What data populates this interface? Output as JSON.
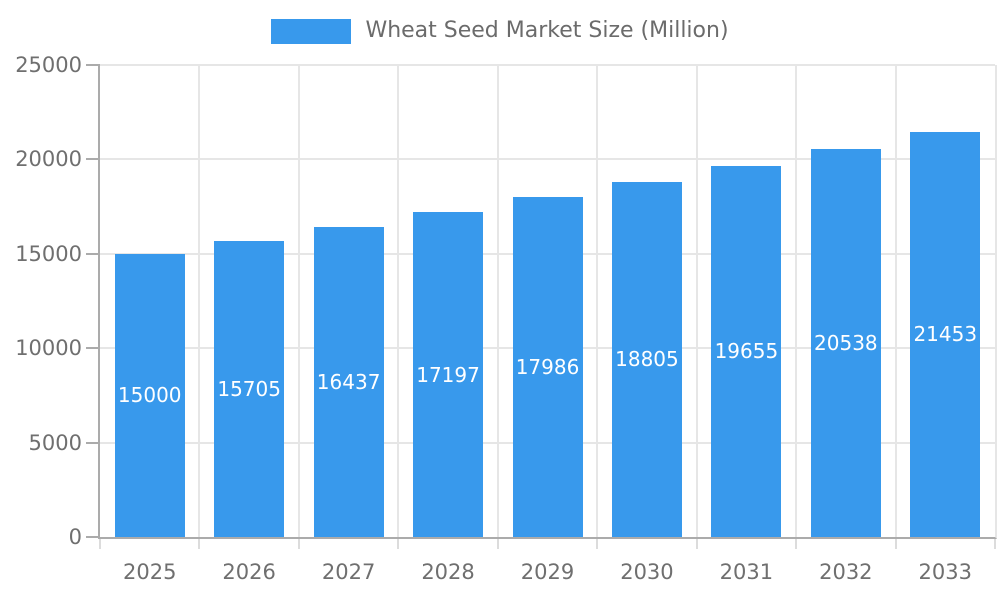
{
  "chart_data": {
    "type": "bar",
    "title": "Wheat Seed Market Size (Million)",
    "legend": [
      "Wheat Seed Market Size (Million)"
    ],
    "categories": [
      "2025",
      "2026",
      "2027",
      "2028",
      "2029",
      "2030",
      "2031",
      "2032",
      "2033"
    ],
    "values": [
      15000,
      15705,
      16437,
      17197,
      17986,
      18805,
      19655,
      20538,
      21453
    ],
    "xlabel": "",
    "ylabel": "",
    "ylim": [
      0,
      25000
    ],
    "yticks": [
      0,
      5000,
      10000,
      15000,
      20000,
      25000
    ],
    "grid": true,
    "legend_position": "top-center",
    "bar_labels_visible": true,
    "colors": {
      "bar": "#3899ec",
      "bar_value_text": "#ffffff",
      "axis_line": "#ababab",
      "gridline": "#e6e6e6",
      "tick_text": "#6f6f6f",
      "legend_text": "#6b6b6b",
      "background": "#ffffff"
    }
  }
}
